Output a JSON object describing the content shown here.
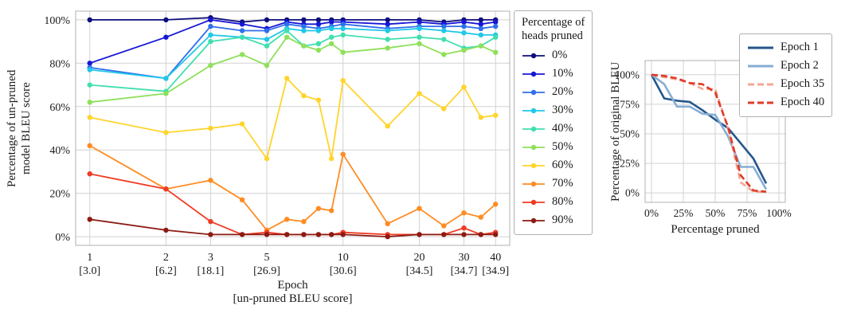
{
  "figure": {
    "background": "#ffffff",
    "grid_color": "#d2d2d2",
    "spine_color": "#b0b0b0",
    "text_color": "#1a1a1a"
  },
  "left_chart": {
    "ylabel_line1": "Percentage of un-pruned",
    "ylabel_line2": "model BLEU score",
    "xlabel_line1": "Epoch",
    "xlabel_line2": "[un-pruned BLEU score]",
    "legend_title_line1": "Percentage of",
    "legend_title_line2": "heads pruned"
  },
  "right_chart": {
    "ylabel": "Percentage of original BLEU",
    "xlabel": "Percentage pruned"
  },
  "chart_data": [
    {
      "type": "line",
      "title": "",
      "xlabel": "Epoch [un-pruned BLEU score]",
      "ylabel": "Percentage of un-pruned model BLEU score",
      "x_scale": "log",
      "grid": true,
      "legend_title": "Percentage of heads pruned",
      "legend_position": "right-outside",
      "x": [
        1,
        2,
        3,
        4,
        5,
        6,
        7,
        8,
        9,
        10,
        15,
        20,
        25,
        30,
        35,
        40
      ],
      "xlim": [
        0.88,
        45.5
      ],
      "x_tick_values": [
        1,
        2,
        3,
        5,
        10,
        20,
        30,
        40
      ],
      "x_tick_labels_line1": [
        "1",
        "2",
        "3",
        "5",
        "10",
        "20",
        "30",
        "40"
      ],
      "x_tick_labels_line2": [
        "[3.0]",
        "[6.2]",
        "[18.1]",
        "[26.9]",
        "[30.6]",
        "[34.5]",
        "[34.7]",
        "[34.9]"
      ],
      "ylim": [
        -4,
        104
      ],
      "y_ticks": [
        0,
        20,
        40,
        60,
        80,
        100
      ],
      "y_tick_labels": [
        "0%",
        "20%",
        "40%",
        "60%",
        "80%",
        "100%"
      ],
      "series": [
        {
          "name": "0%",
          "color": "#0d0d7d",
          "values": [
            100,
            100,
            101,
            99,
            100,
            100,
            100,
            100,
            100,
            100,
            100,
            100,
            99,
            100,
            100,
            100
          ]
        },
        {
          "name": "10%",
          "color": "#1616d6",
          "values": [
            80,
            92,
            100,
            98,
            96,
            99,
            98,
            98,
            99,
            99,
            98,
            99,
            98,
            99,
            98,
            99
          ]
        },
        {
          "name": "20%",
          "color": "#2f6fec",
          "values": [
            78,
            73,
            97,
            95,
            95,
            98,
            97,
            96,
            97,
            98,
            96,
            97,
            97,
            97,
            96,
            97
          ]
        },
        {
          "name": "30%",
          "color": "#20c8e8",
          "values": [
            77,
            73,
            93,
            92,
            91,
            96,
            95,
            95,
            96,
            96,
            95,
            96,
            95,
            94,
            93,
            93
          ]
        },
        {
          "name": "40%",
          "color": "#41dfb0",
          "values": [
            70,
            67,
            90,
            92,
            88,
            95,
            88,
            89,
            92,
            93,
            91,
            92,
            91,
            87,
            88,
            92
          ]
        },
        {
          "name": "50%",
          "color": "#8fe05a",
          "values": [
            62,
            66,
            79,
            84,
            79,
            92,
            88,
            86,
            89,
            85,
            87,
            89,
            84,
            86,
            88,
            85
          ]
        },
        {
          "name": "60%",
          "color": "#ffd42b",
          "values": [
            55,
            48,
            50,
            52,
            36,
            73,
            65,
            63,
            36,
            72,
            51,
            66,
            59,
            69,
            55,
            56
          ]
        },
        {
          "name": "70%",
          "color": "#ff8c23",
          "values": [
            42,
            22,
            26,
            17,
            3,
            8,
            7,
            13,
            12,
            38,
            6,
            13,
            5,
            11,
            9,
            15
          ]
        },
        {
          "name": "80%",
          "color": "#ef3b23",
          "values": [
            29,
            22,
            7,
            1,
            2,
            1,
            1,
            1,
            1,
            2,
            1,
            1,
            1,
            4,
            1,
            2
          ]
        },
        {
          "name": "90%",
          "color": "#8c1b13",
          "values": [
            8,
            3,
            1,
            1,
            1,
            1,
            1,
            1,
            1,
            1,
            0,
            1,
            1,
            1,
            1,
            1
          ]
        }
      ]
    },
    {
      "type": "line",
      "title": "",
      "xlabel": "Percentage pruned",
      "ylabel": "Percentage of original BLEU",
      "x_scale": "linear",
      "grid": true,
      "legend_position": "upper-right",
      "x": [
        0,
        10,
        20,
        30,
        40,
        50,
        60,
        70,
        80,
        90
      ],
      "xlim": [
        -5,
        105
      ],
      "x_tick_values": [
        0,
        25,
        50,
        75,
        100
      ],
      "x_tick_labels": [
        "0%",
        "25%",
        "50%",
        "75%",
        "100%"
      ],
      "ylim": [
        -8,
        112
      ],
      "y_ticks": [
        0,
        25,
        50,
        75,
        100
      ],
      "y_tick_labels": [
        "0%",
        "25%",
        "50%",
        "75%",
        "100%"
      ],
      "series": [
        {
          "name": "Epoch 1",
          "color": "#24578b",
          "dash": "",
          "values": [
            100,
            80,
            78,
            77,
            70,
            62,
            55,
            42,
            29,
            8
          ]
        },
        {
          "name": "Epoch 2",
          "color": "#86aed3",
          "dash": "",
          "values": [
            100,
            92,
            73,
            73,
            67,
            66,
            48,
            22,
            22,
            3
          ]
        },
        {
          "name": "Epoch 35",
          "color": "#f3a793",
          "dash": "8,4",
          "values": [
            100,
            98,
            96,
            93,
            88,
            88,
            55,
            9,
            1,
            1
          ]
        },
        {
          "name": "Epoch 40",
          "color": "#df3a28",
          "dash": "8,4",
          "values": [
            100,
            99,
            97,
            93,
            92,
            85,
            56,
            15,
            2,
            1
          ]
        }
      ]
    }
  ]
}
